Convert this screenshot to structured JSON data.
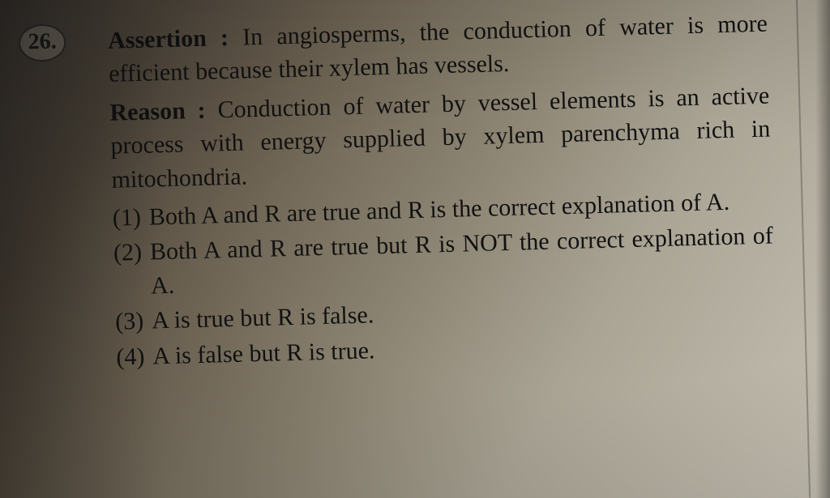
{
  "question": {
    "number": "26.",
    "assertion_label": "Assertion :",
    "assertion_text": "In angiosperms, the conduction of water is more efficient because their xylem has vessels.",
    "reason_label": "Reason :",
    "reason_text": "Conduction of water by vessel elements is an active process with energy supplied by xylem parenchyma rich in mitochondria.",
    "options": [
      {
        "num": "(1)",
        "text": "Both A and R are true and R is the correct explanation of A."
      },
      {
        "num": "(2)",
        "text": "Both A and R are true but R is NOT the correct explanation of A."
      },
      {
        "num": "(3)",
        "text": "A is true but R is false."
      },
      {
        "num": "(4)",
        "text": "A is false but R is true."
      }
    ]
  }
}
